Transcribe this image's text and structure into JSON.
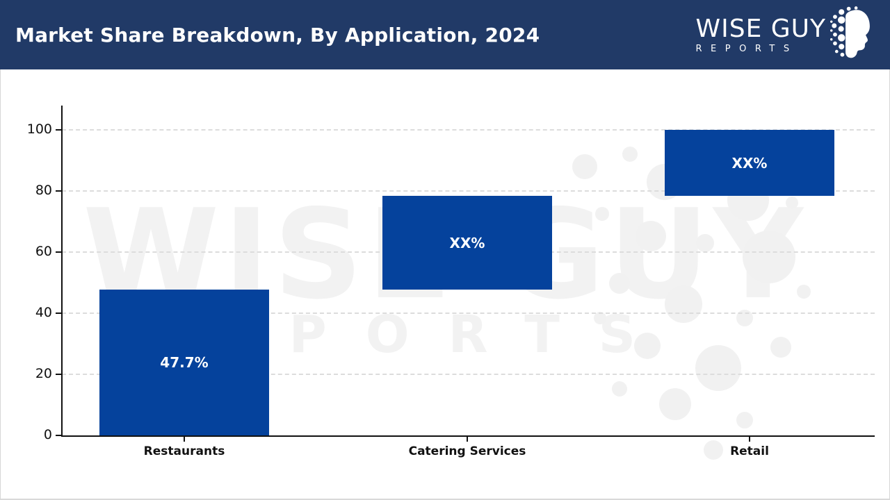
{
  "header": {
    "title": "Market Share Breakdown, By Application, 2024",
    "bg_color": "#213a67",
    "logo": {
      "name": "WISE GUY",
      "sub": "REPORTS"
    }
  },
  "watermark": {
    "line1": "WISE GUY",
    "line2": "REPORTS"
  },
  "chart_data": {
    "type": "bar",
    "subtype": "stacked-waterfall-floating-bars",
    "title": "Market Share Breakdown, By Application, 2024",
    "categories": [
      "Restaurants",
      "Catering Services",
      "Retail"
    ],
    "segments": [
      {
        "category": "Restaurants",
        "start": 0,
        "end": 47.7,
        "label": "47.7%"
      },
      {
        "category": "Catering Services",
        "start": 47.7,
        "end": 78.4,
        "label": "XX%"
      },
      {
        "category": "Retail",
        "start": 78.4,
        "end": 100,
        "label": "XX%"
      }
    ],
    "yticks": [
      0,
      20,
      40,
      60,
      80,
      100
    ],
    "ylim": [
      0,
      105
    ],
    "xlabel": "",
    "ylabel": "",
    "legend": "none",
    "grid": "horizontal-dashed",
    "bar_color": "#05429c",
    "bar_label_color": "#ffffff",
    "axis_color": "#111111",
    "gridline_color": "#dcdcdc"
  }
}
